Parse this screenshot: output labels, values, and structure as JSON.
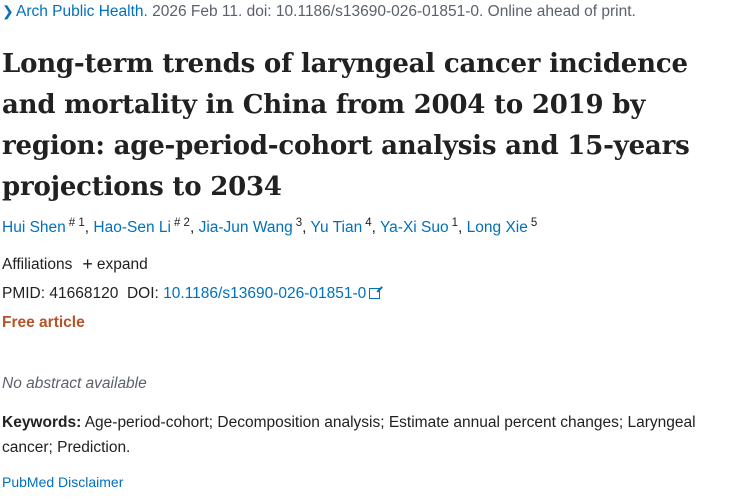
{
  "citation": {
    "journal": "Arch Public Health.",
    "rest": " 2026 Feb 11. doi: 10.1186/s13690-026-01851-0. Online ahead of print."
  },
  "title": "Long-term trends of laryngeal cancer incidence and mortality in China from 2004 to 2019 by region: age-period-cohort analysis and 15-years projections to 2034",
  "authors": [
    {
      "name": "Hui Shen",
      "sup": "# 1"
    },
    {
      "name": "Hao-Sen Li",
      "sup": "# 2"
    },
    {
      "name": "Jia-Jun Wang",
      "sup": "3"
    },
    {
      "name": "Yu Tian",
      "sup": "4"
    },
    {
      "name": "Ya-Xi Suo",
      "sup": "1"
    },
    {
      "name": "Long Xie",
      "sup": "5"
    }
  ],
  "affiliations": {
    "label": "Affiliations",
    "expand": "expand"
  },
  "ids": {
    "pmid_label": "PMID:",
    "pmid": "41668120",
    "doi_label": "DOI:",
    "doi": "10.1186/s13690-026-01851-0"
  },
  "free_article": "Free article",
  "no_abstract": "No abstract available",
  "keywords": {
    "label": "Keywords:",
    "text": " Age-period-cohort; Decomposition analysis; Estimate annual percent changes; Laryngeal cancer; Prediction."
  },
  "disclaimer": "PubMed Disclaimer",
  "icons": {
    "journal_chevron": "chevron-right-icon",
    "expand": "plus-icon",
    "external": "external-link-icon"
  },
  "colors": {
    "link": "#0071bc",
    "free_article": "#b5532a",
    "text": "#212121",
    "muted": "#5b616b"
  }
}
